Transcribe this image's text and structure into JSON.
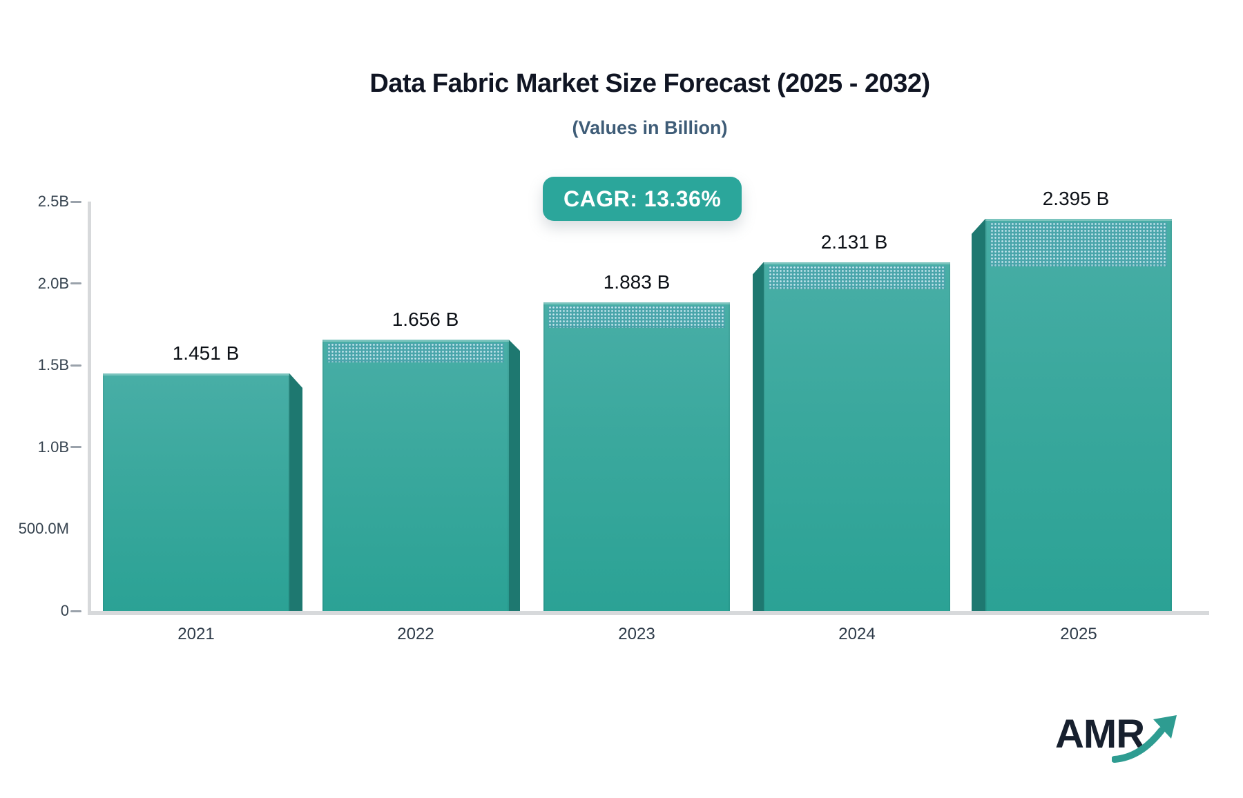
{
  "page": {
    "background": "#ffffff"
  },
  "header": {
    "title": "Data Fabric Market Size Forecast (2025 - 2032)",
    "subtitle": "(Values in Billion)",
    "cagr_badge": "CAGR: 13.36%"
  },
  "chart_data": {
    "type": "bar",
    "title": "Data Fabric Market Size Forecast (2025 - 2032)",
    "subtitle": "(Values in Billion)",
    "cagr_label": "CAGR: 13.36%",
    "categories": [
      "2021",
      "2022",
      "2023",
      "2024",
      "2025"
    ],
    "values": [
      1.451,
      1.656,
      1.883,
      2.131,
      2.395
    ],
    "value_labels": [
      "1.451 B",
      "1.656 B",
      "1.883 B",
      "2.131 B",
      "2.395 B"
    ],
    "value_unit": "Billion",
    "ylim": [
      0,
      2.5
    ],
    "yticks": [
      {
        "label": "0",
        "value": 0,
        "dash": true
      },
      {
        "label": "500.0M",
        "value": 0.5,
        "dash": false
      },
      {
        "label": "1.0B",
        "value": 1.0,
        "dash": true
      },
      {
        "label": "1.5B",
        "value": 1.5,
        "dash": true
      },
      {
        "label": "2.0B",
        "value": 2.0,
        "dash": true
      },
      {
        "label": "2.5B",
        "value": 2.5,
        "dash": true
      }
    ],
    "grid": false,
    "legend": false
  },
  "colors": {
    "bar_gradient_top": "#48AEA6",
    "bar_gradient_bottom": "#2BA295",
    "bar_side_face": "#1E7870",
    "bar_top_strip": "#4AA5AB",
    "badge_background": "#2BA69B",
    "badge_text": "#FFFFFF",
    "axis_line": "#D7D9DB",
    "tick_dash": "#9AA2AB",
    "title_text": "#101523",
    "subtitle_text": "#3E5C77",
    "logo_text": "#17202E",
    "logo_arrow": "#2E9C91"
  },
  "logo": {
    "text": "AMR"
  }
}
